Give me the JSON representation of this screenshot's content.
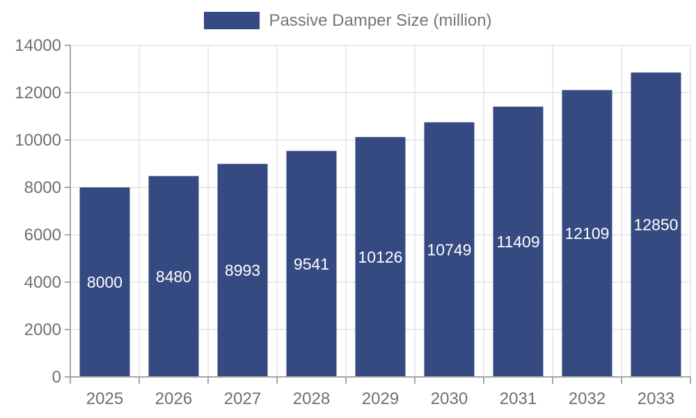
{
  "legend": {
    "label": "Passive Damper Size (million)"
  },
  "colors": {
    "bar": "#364a82",
    "axis_line": "#a5a5a5",
    "grid_line": "#e3e3e5",
    "tick_label": "#6f6f6f",
    "legend_text": "#757575",
    "value_label": "#ffffff",
    "background": "#ffffff"
  },
  "chart_data": {
    "type": "bar",
    "categories": [
      "2025",
      "2026",
      "2027",
      "2028",
      "2029",
      "2030",
      "2031",
      "2032",
      "2033"
    ],
    "values": [
      8000,
      8480,
      8993,
      9541,
      10126,
      10749,
      11409,
      12109,
      12850
    ],
    "title": "Passive Damper Size (million)",
    "xlabel": "",
    "ylabel": "",
    "ylim": [
      0,
      14000
    ],
    "ytick_interval": 2000,
    "yticks": [
      0,
      2000,
      4000,
      6000,
      8000,
      10000,
      12000,
      14000
    ],
    "grid": true,
    "legend_position": "top",
    "value_labels": "inside-center"
  }
}
